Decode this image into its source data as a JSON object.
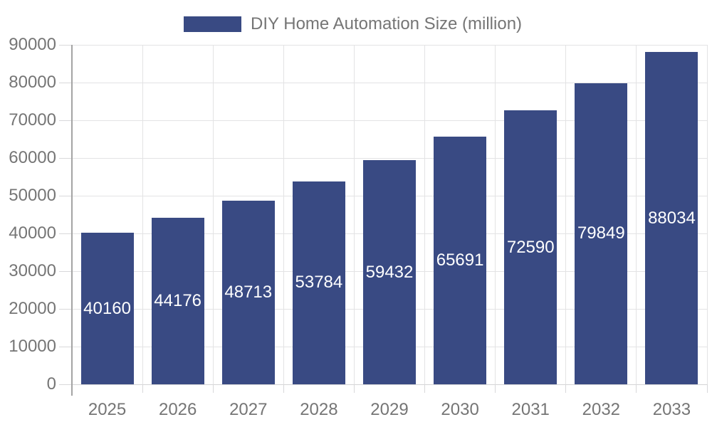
{
  "chart_data": {
    "type": "bar",
    "title": "",
    "legend": "DIY Home Automation Size (million)",
    "categories": [
      "2025",
      "2026",
      "2027",
      "2028",
      "2029",
      "2030",
      "2031",
      "2032",
      "2033"
    ],
    "values": [
      40160,
      44176,
      48713,
      53784,
      59432,
      65691,
      72590,
      79849,
      88034
    ],
    "yticks": [
      "0",
      "10000",
      "20000",
      "30000",
      "40000",
      "50000",
      "60000",
      "70000",
      "80000",
      "90000"
    ],
    "ylim": [
      0,
      90000
    ],
    "xlabel": "",
    "ylabel": "",
    "grid": true,
    "legend_position": "top",
    "bar_color": "#394a83",
    "value_label_color": "#ffffff",
    "axis_text_color": "#757575",
    "grid_color": "#e3e3e4",
    "axis_line_color": "#a4a4a4"
  }
}
